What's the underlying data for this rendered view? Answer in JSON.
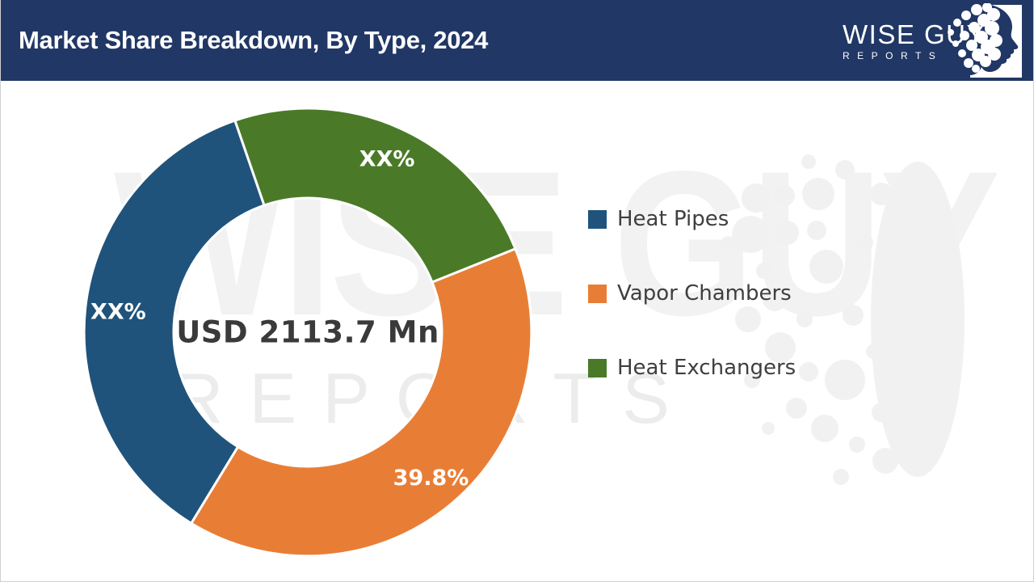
{
  "header": {
    "title": "Market Share Breakdown, By Type, 2024",
    "logo": {
      "line1": "WISE GUY",
      "line2": "REPORTS"
    }
  },
  "watermark": {
    "line1": "WISE GUY",
    "line2": "REPORTS"
  },
  "chart_data": {
    "type": "pie",
    "subtype": "donut",
    "title": "Market Share Breakdown, By Type, 2024",
    "center_label": "USD 2113.7 Mn",
    "start_angle_deg": -19,
    "direction": "clockwise",
    "segments": [
      {
        "name": "Heat Exchangers",
        "value_pct": 24.2,
        "label": "XX%",
        "color": "#4a7a28"
      },
      {
        "name": "Vapor Chambers",
        "value_pct": 39.8,
        "label": "39.8%",
        "color": "#e87e35"
      },
      {
        "name": "Heat Pipes",
        "value_pct": 36.0,
        "label": "XX%",
        "color": "#1f537b"
      }
    ],
    "legend_position": "right",
    "grid": false
  },
  "legend": {
    "items": [
      {
        "label": "Heat Pipes",
        "color": "#1f537b"
      },
      {
        "label": "Vapor Chambers",
        "color": "#e87e35"
      },
      {
        "label": "Heat Exchangers",
        "color": "#4a7a28"
      }
    ]
  },
  "colors": {
    "header_bg": "#213765",
    "center_text": "#3a3a3a",
    "watermark": "#f0f0f0"
  }
}
